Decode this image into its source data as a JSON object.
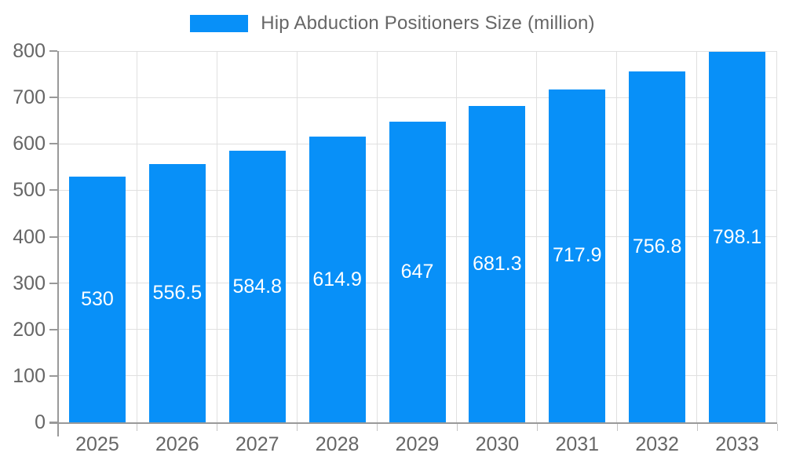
{
  "legend": {
    "label": "Hip Abduction Positioners Size (million)"
  },
  "colors": {
    "bar": "#0890F8",
    "axis": "#999999",
    "grid": "#E0E0E0",
    "tick": "#C4C4C4",
    "text": "#666666",
    "value_label": "#FFFFFF",
    "background": "#FFFFFF"
  },
  "chart_data": {
    "type": "bar",
    "title": "Hip Abduction Positioners Size (million)",
    "categories": [
      "2025",
      "2026",
      "2027",
      "2028",
      "2029",
      "2030",
      "2031",
      "2032",
      "2033"
    ],
    "values": [
      530,
      556.5,
      584.8,
      614.9,
      647,
      681.3,
      717.9,
      756.8,
      798.1
    ],
    "value_labels": [
      "530",
      "556.5",
      "584.8",
      "614.9",
      "647",
      "681.3",
      "717.9",
      "756.8",
      "798.1"
    ],
    "xlabel": "",
    "ylabel": "",
    "ylim": [
      0,
      800
    ],
    "ytick_step": 100,
    "grid": true,
    "legend_position": "top",
    "value_label_position": "inside-center"
  }
}
